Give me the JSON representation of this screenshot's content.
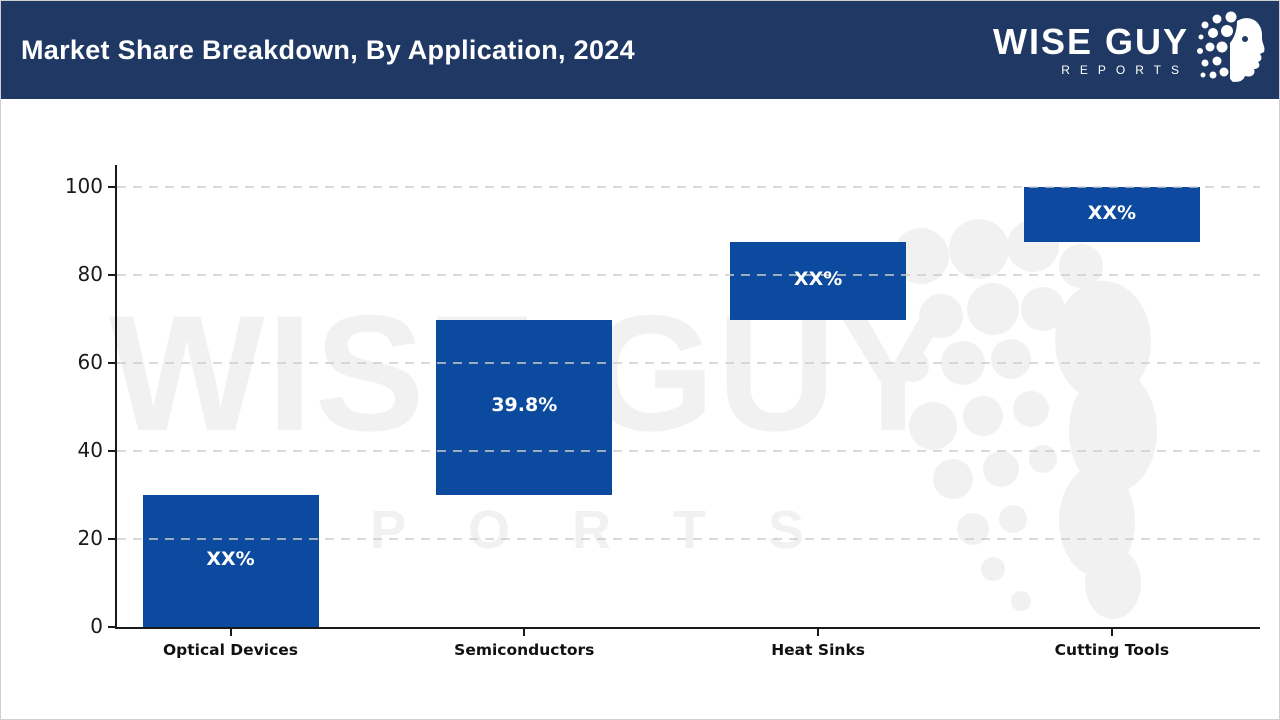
{
  "header": {
    "title": "Market Share Breakdown, By Application, 2024",
    "logo": {
      "wordmark": "WISE GUY",
      "subtext": "REPORTS"
    }
  },
  "watermark": {
    "wordmark": "WISE GUY",
    "subtext": "REPORTS"
  },
  "chart_data": {
    "type": "bar",
    "variant": "floating-waterfall",
    "title": "Market Share Breakdown, By Application, 2024",
    "categories": [
      "Optical Devices",
      "Semiconductors",
      "Heat Sinks",
      "Cutting Tools"
    ],
    "segments": [
      {
        "category": "Optical Devices",
        "start": 0,
        "end": 30,
        "label": "XX%"
      },
      {
        "category": "Semiconductors",
        "start": 30,
        "end": 69.8,
        "label": "39.8%"
      },
      {
        "category": "Heat Sinks",
        "start": 69.8,
        "end": 87.5,
        "label": "XX%"
      },
      {
        "category": "Cutting Tools",
        "start": 87.5,
        "end": 100,
        "label": "XX%"
      }
    ],
    "xlabel": "",
    "ylabel": "",
    "yticks": [
      0,
      20,
      40,
      60,
      80,
      100
    ],
    "ylim": [
      0,
      105
    ],
    "grid": "horizontal-dashed-over-bars",
    "legend": "none",
    "bar_color": "#0b4a9e",
    "bar_label_color": "#ffffff"
  },
  "colors": {
    "header_bg": "#1f3864",
    "bar": "#0b4a9e",
    "axis": "#1a1a1a",
    "grid": "#d9d9d9",
    "watermark": "#f1f1f1",
    "page_border": "#cfcfcf"
  }
}
